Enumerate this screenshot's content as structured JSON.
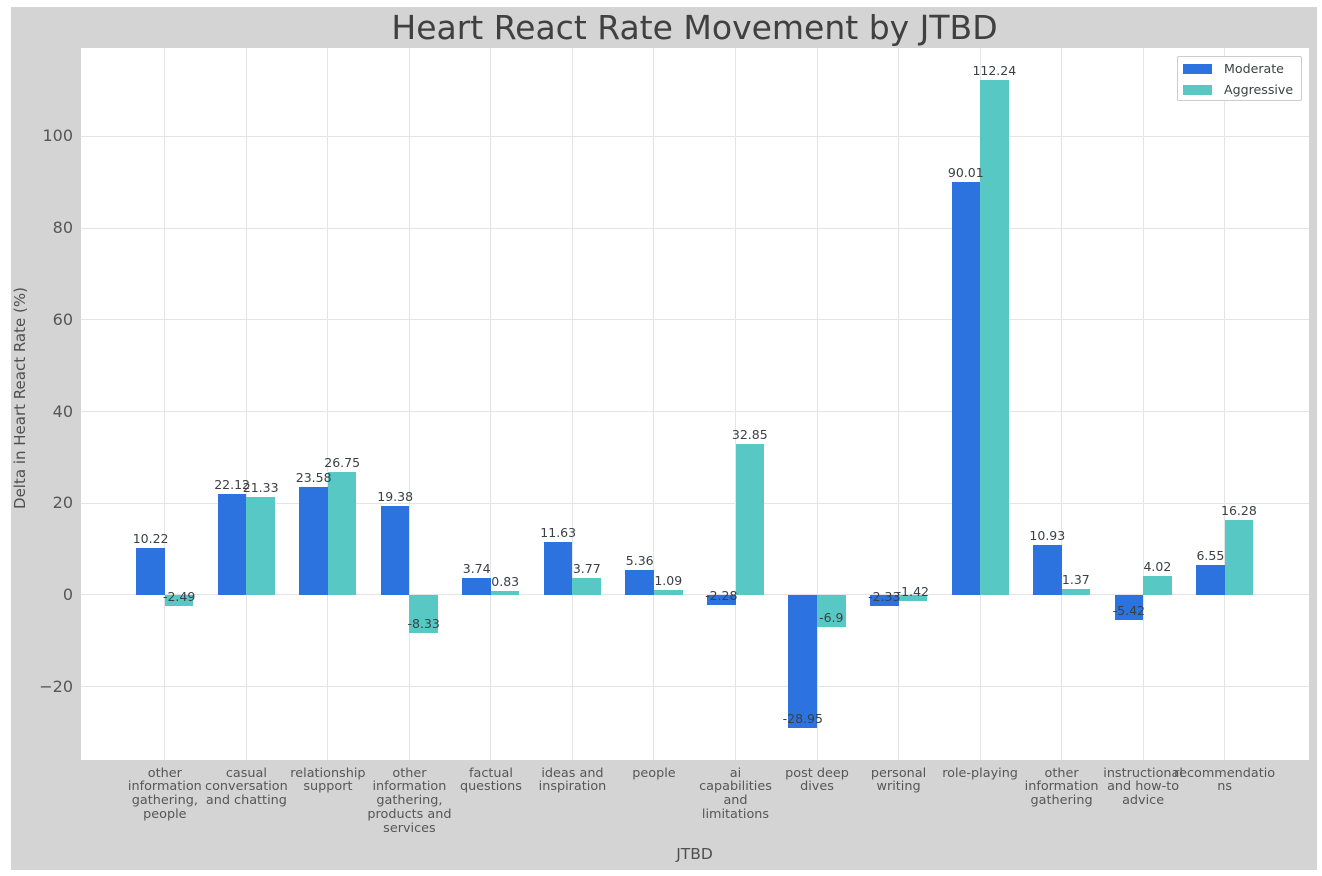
{
  "chart_data": {
    "type": "bar",
    "title": "Heart React Rate Movement by JTBD",
    "xlabel": "JTBD",
    "ylabel": "Delta in Heart React Rate (%)",
    "categories": [
      "other information gathering, people",
      "casual conversation and chatting",
      "relationship support",
      "other information gathering, products and services",
      "factual questions",
      "ideas and inspiration",
      "people",
      "ai capabilities and limitations",
      "post deep dives",
      "personal writing",
      "role-playing",
      "other information gathering",
      "instructional and how-to advice",
      "recommendations"
    ],
    "category_tick_lines": [
      [
        "other",
        "information",
        "gathering,",
        "people"
      ],
      [
        "casual",
        "conversation",
        "and chatting"
      ],
      [
        "relationship",
        "support"
      ],
      [
        "other",
        "information",
        "gathering,",
        "products and",
        "services"
      ],
      [
        "factual",
        "questions"
      ],
      [
        "ideas and",
        "inspiration"
      ],
      [
        "people"
      ],
      [
        "ai",
        "capabilities",
        "and",
        "limitations"
      ],
      [
        "post deep",
        "dives"
      ],
      [
        "personal",
        "writing"
      ],
      [
        "role-playing"
      ],
      [
        "other",
        "information",
        "gathering"
      ],
      [
        "instructional",
        "and how-to",
        "advice"
      ],
      [
        "recommendatio",
        "ns"
      ]
    ],
    "series": [
      {
        "name": "Moderate",
        "color": "#2d73e0",
        "values": [
          10.22,
          22.12,
          23.58,
          19.38,
          3.74,
          11.63,
          5.36,
          -2.28,
          -28.95,
          -2.33,
          90.01,
          10.93,
          -5.42,
          6.55
        ],
        "labels": [
          "10.22",
          "22.12",
          "23.58",
          "19.38",
          "3.74",
          "11.63",
          "5.36",
          "-2.28",
          "-28.95",
          "-2.33",
          "90.01",
          "10.93",
          "-5.42",
          "6.55"
        ]
      },
      {
        "name": "Aggressive",
        "color": "#57c8c4",
        "values": [
          -2.49,
          21.33,
          26.75,
          -8.33,
          0.83,
          3.77,
          1.09,
          32.85,
          -6.9,
          -1.42,
          112.24,
          1.37,
          4.02,
          16.28
        ],
        "labels": [
          "-2.49",
          "21.33",
          "26.75",
          "-8.33",
          "0.83",
          "3.77",
          "1.09",
          "32.85",
          "-6.9",
          "-1.42",
          "112.24",
          "1.37",
          "4.02",
          "16.28"
        ]
      }
    ],
    "bar_width": 0.35,
    "xlim": [
      -1.035,
      14.035
    ],
    "ylim": [
      -36.01,
      119.3
    ],
    "yticks": [
      -20,
      0,
      20,
      40,
      60,
      80,
      100
    ],
    "ytick_labels": [
      "−20",
      "0",
      "20",
      "40",
      "60",
      "80",
      "100"
    ],
    "grid": true,
    "legend_position": "upper right"
  },
  "style": {
    "figure_bg": "#d4d4d4",
    "panel_bg": "#ffffff",
    "grid_color": "#e4e4e4",
    "title_color": "#404040",
    "tick_color": "#565656",
    "value_label_color": "#3c4046"
  }
}
